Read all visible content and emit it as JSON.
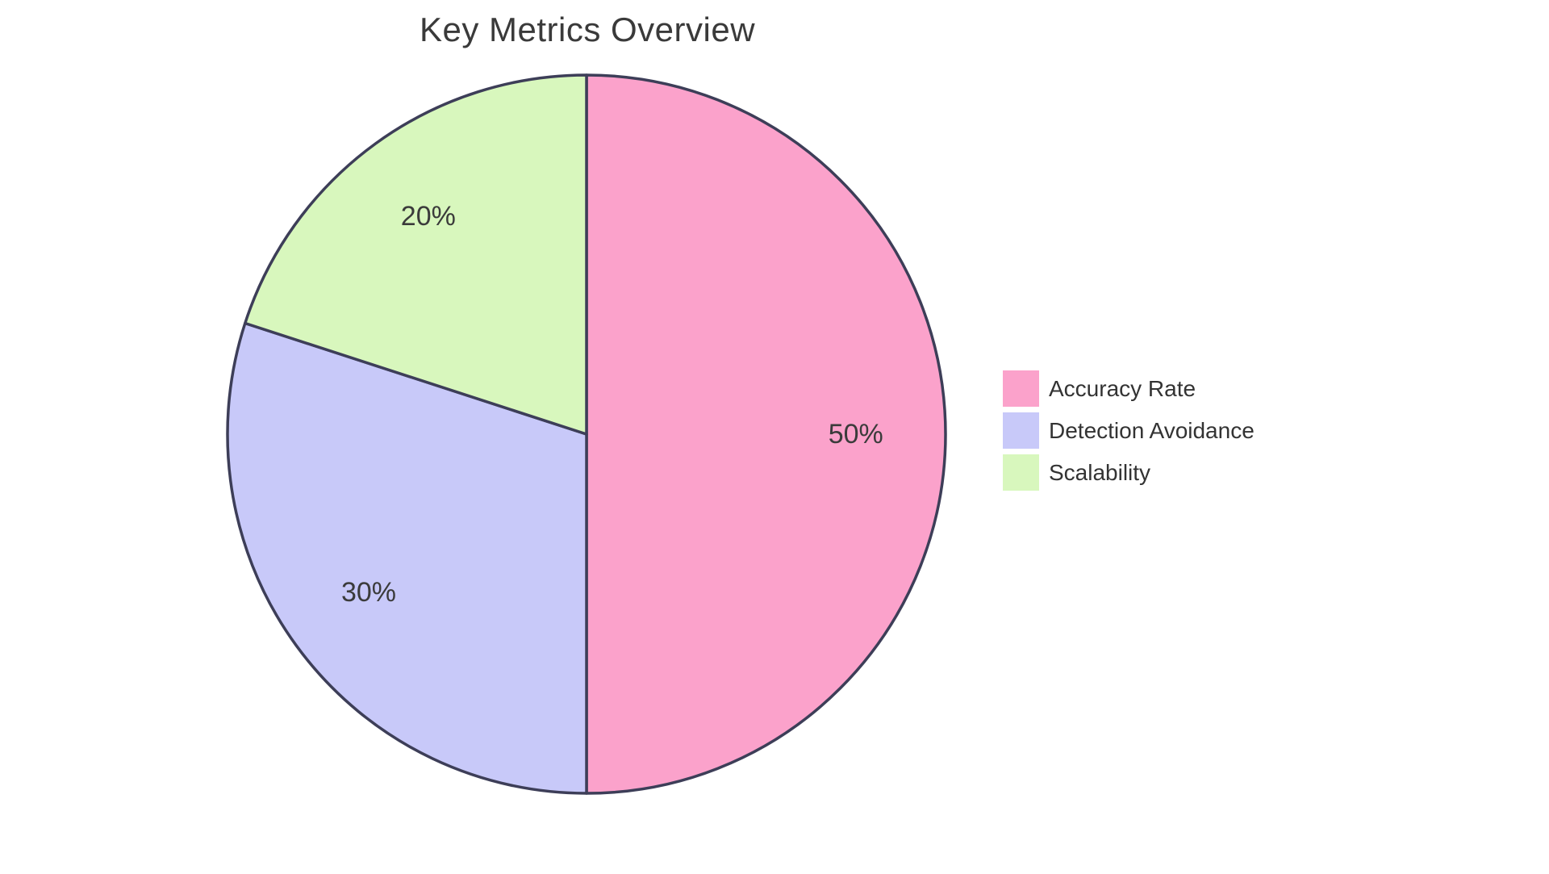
{
  "chart_data": {
    "type": "pie",
    "title": "Key Metrics Overview",
    "categories": [
      "Accuracy Rate",
      "Detection Avoidance",
      "Scalability"
    ],
    "values": [
      50,
      30,
      20
    ],
    "slice_labels": [
      "50%",
      "30%",
      "20%"
    ],
    "colors": [
      "#FBA2CB",
      "#C8C9F9",
      "#D8F7BD"
    ],
    "start_angle": "top",
    "direction": "clockwise",
    "label_distance": 0.75,
    "legend_position": "right"
  },
  "style": {
    "outline_color": "#3D3E58",
    "outline_width": 3.5,
    "label_color": "#3B3B3B",
    "background": "#FFFFFF"
  }
}
